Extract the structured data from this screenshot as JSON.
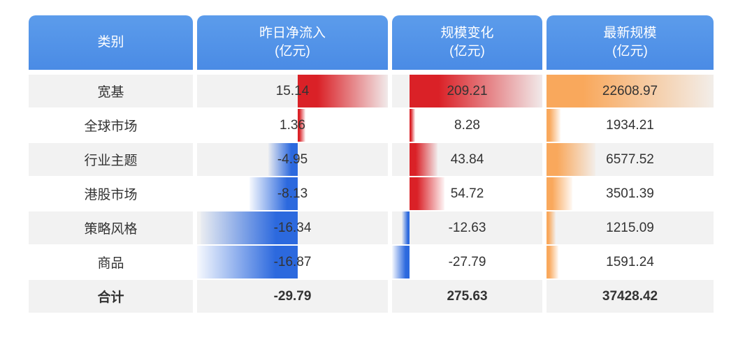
{
  "table": {
    "columns": [
      {
        "label": "类别",
        "unit": ""
      },
      {
        "label": "昨日净流入",
        "unit": "(亿元)"
      },
      {
        "label": "规模变化",
        "unit": "(亿元)"
      },
      {
        "label": "最新规模",
        "unit": "(亿元)"
      }
    ],
    "rows": [
      {
        "category": "宽基",
        "net_inflow": 15.14,
        "scale_change": 209.21,
        "latest_scale": 22608.97
      },
      {
        "category": "全球市场",
        "net_inflow": 1.36,
        "scale_change": 8.28,
        "latest_scale": 1934.21
      },
      {
        "category": "行业主题",
        "net_inflow": -4.95,
        "scale_change": 43.84,
        "latest_scale": 6577.52
      },
      {
        "category": "港股市场",
        "net_inflow": -8.13,
        "scale_change": 54.72,
        "latest_scale": 3501.39
      },
      {
        "category": "策略风格",
        "net_inflow": -16.34,
        "scale_change": -12.63,
        "latest_scale": 1215.09
      },
      {
        "category": "商品",
        "net_inflow": -16.87,
        "scale_change": -27.79,
        "latest_scale": 1591.24
      }
    ],
    "total_row": {
      "category": "合计",
      "net_inflow": -29.79,
      "scale_change": 275.63,
      "latest_scale": 37428.42
    }
  },
  "colors": {
    "header_bg_top": "#5C9CEB",
    "header_bg_bottom": "#4A8BE5",
    "header_text": "#FFFFFF",
    "row_alt_bg": "#F2F2F2",
    "row_bg": "#FFFFFF",
    "body_text": "#333333",
    "positive_bar": "#DA2127",
    "negative_bar": "#2C69DE",
    "latest_scale_bar": "#F9A85C"
  },
  "chart_data": {
    "type": "table",
    "categories": [
      "宽基",
      "全球市场",
      "行业主题",
      "港股市场",
      "策略风格",
      "商品"
    ],
    "series": [
      {
        "name": "昨日净流入(亿元)",
        "values": [
          15.14,
          1.36,
          -4.95,
          -8.13,
          -16.34,
          -16.87
        ],
        "total": -29.79,
        "bar_style": "diverging red(positive)/blue(negative), zero axis positioned by min/max"
      },
      {
        "name": "规模变化(亿元)",
        "values": [
          209.21,
          8.28,
          43.84,
          54.72,
          -12.63,
          -27.79
        ],
        "total": 275.63,
        "bar_style": "diverging red(positive)/blue(negative), zero axis positioned by min/max"
      },
      {
        "name": "最新规模(亿元)",
        "values": [
          22608.97,
          1934.21,
          6577.52,
          3501.39,
          1215.09,
          1591.24
        ],
        "total": 37428.42,
        "bar_style": "orange bars from left, scaled to max"
      }
    ],
    "total_row_label": "合计",
    "category_header": "类别",
    "legend_position": "none",
    "grid": false
  }
}
